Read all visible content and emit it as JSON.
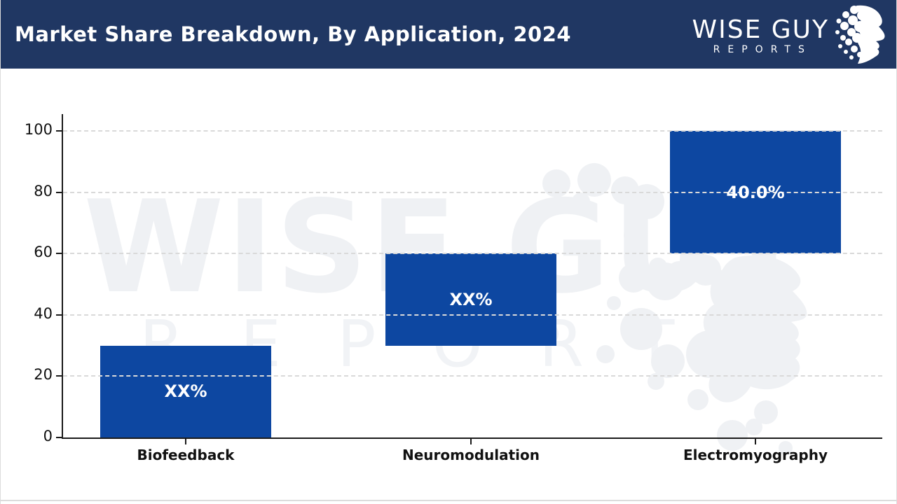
{
  "header": {
    "title": "Market Share Breakdown, By Application, 2024",
    "logo": {
      "line1": "WISE GUY",
      "line2": "REPORTS"
    }
  },
  "watermark": {
    "line1": "WISE GUY",
    "line2": "REPORTS"
  },
  "chart_data": {
    "type": "bar",
    "subtype": "floating-segment (waterfall-style share breakdown)",
    "title": "Market Share Breakdown, By Application, 2024",
    "categories": [
      "Biofeedback",
      "Neuromodulation",
      "Electromyography"
    ],
    "segments": [
      {
        "category": "Biofeedback",
        "start": 0,
        "end": 30,
        "label": "XX%"
      },
      {
        "category": "Neuromodulation",
        "start": 30,
        "end": 60,
        "label": "XX%"
      },
      {
        "category": "Electromyography",
        "start": 60,
        "end": 100,
        "label": "40.0%"
      }
    ],
    "ylim": [
      0,
      105
    ],
    "yticks": [
      0,
      20,
      40,
      60,
      80,
      100
    ],
    "grid": "horizontal-dashed",
    "legend": "none",
    "colors": {
      "bar": "#0d47a1",
      "bar_label": "#ffffff",
      "axis": "#1a1a1a",
      "grid": "#d9d9d9",
      "header_bg": "#203763",
      "header_text": "#ffffff",
      "watermark": "#eff1f4"
    }
  }
}
